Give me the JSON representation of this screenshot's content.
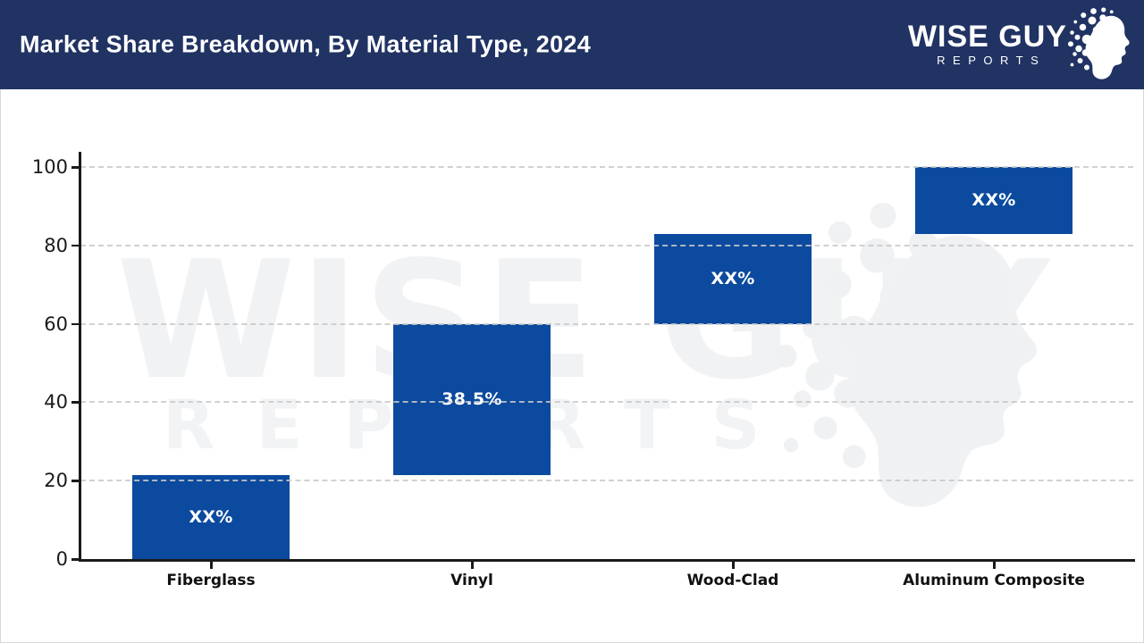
{
  "header": {
    "title": "Market Share Breakdown, By Material Type, 2024",
    "bg_color": "#213363",
    "logo": {
      "line1": "WISE GUY",
      "line2": "REPORTS"
    }
  },
  "watermark": {
    "line1": "WISE GUY",
    "line2": "REPORTS"
  },
  "chart_data": {
    "type": "bar",
    "subtype": "waterfall",
    "title": "Market Share Breakdown, By Material Type, 2024",
    "xlabel": "",
    "ylabel": "",
    "categories": [
      "Fiberglass",
      "Vinyl",
      "Wood-Clad",
      "Aluminum Composite"
    ],
    "bars": [
      {
        "category": "Fiberglass",
        "base": 0,
        "top": 21.5,
        "label": "XX%"
      },
      {
        "category": "Vinyl",
        "base": 21.5,
        "top": 60,
        "label": "38.5%"
      },
      {
        "category": "Wood-Clad",
        "base": 60,
        "top": 83,
        "label": "XX%"
      },
      {
        "category": "Aluminum Composite",
        "base": 83,
        "top": 100,
        "label": "XX%"
      }
    ],
    "yticks": [
      0,
      20,
      40,
      60,
      80,
      100
    ],
    "ylim": [
      0,
      104
    ],
    "grid": "horizontal dashed, drawn above bars",
    "legend": "none",
    "bar_color": "#0B4A9E",
    "bar_label_color": "#FFFFFF",
    "axis_color": "#1A1A1A",
    "gridline_color": "#C9C9C9",
    "watermark_color": "#F1F2F4"
  }
}
